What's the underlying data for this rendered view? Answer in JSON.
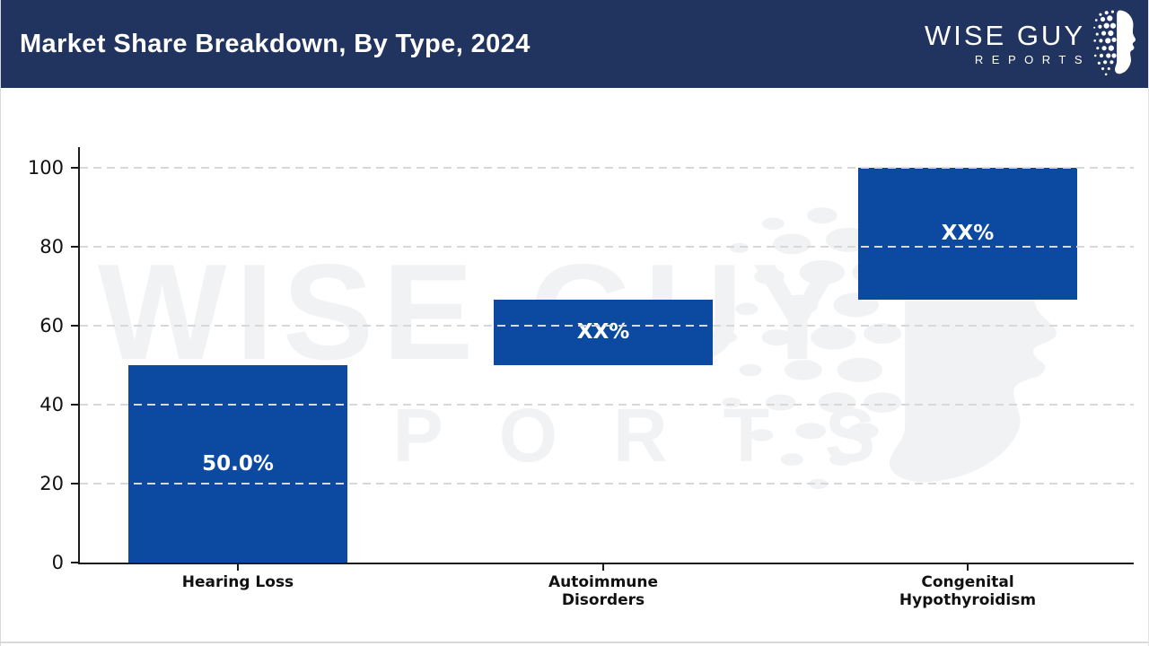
{
  "header": {
    "title": "Market Share Breakdown, By Type, 2024",
    "logo": {
      "line1": "WISE GUY",
      "line2": "REPORTS"
    }
  },
  "watermark": {
    "line1": "WISE GUY",
    "line2": "REPORTS"
  },
  "theme": {
    "header_bg": "#21335f",
    "bar_color": "#0b4aa0",
    "grid_color": "#d8d8d8",
    "axis_color": "#1a1a1a",
    "watermark_color": "#f1f2f4"
  },
  "chart_data": {
    "type": "bar",
    "subtype": "waterfall",
    "title": "Market Share Breakdown, By Type, 2024",
    "categories": [
      "Hearing Loss",
      "Autoimmune Disorders",
      "Congenital Hypothyroidism"
    ],
    "bars": [
      {
        "label": "Hearing Loss",
        "category_lines": [
          "Hearing Loss"
        ],
        "start": 0,
        "end": 50,
        "value_label": "50.0%"
      },
      {
        "label": "Autoimmune Disorders",
        "category_lines": [
          "Autoimmune",
          "Disorders"
        ],
        "start": 50,
        "end": 66.7,
        "value_label": "XX%"
      },
      {
        "label": "Congenital Hypothyroidism",
        "category_lines": [
          "Congenital",
          "Hypothyroidism"
        ],
        "start": 66.7,
        "end": 100,
        "value_label": "XX%"
      }
    ],
    "ylim": [
      0,
      100
    ],
    "yticks": [
      0,
      20,
      40,
      60,
      80,
      100
    ],
    "grid": "horizontal-dashed",
    "legend": "none",
    "xlabel": "",
    "ylabel": "",
    "bar_color": "#0b4aa0"
  }
}
